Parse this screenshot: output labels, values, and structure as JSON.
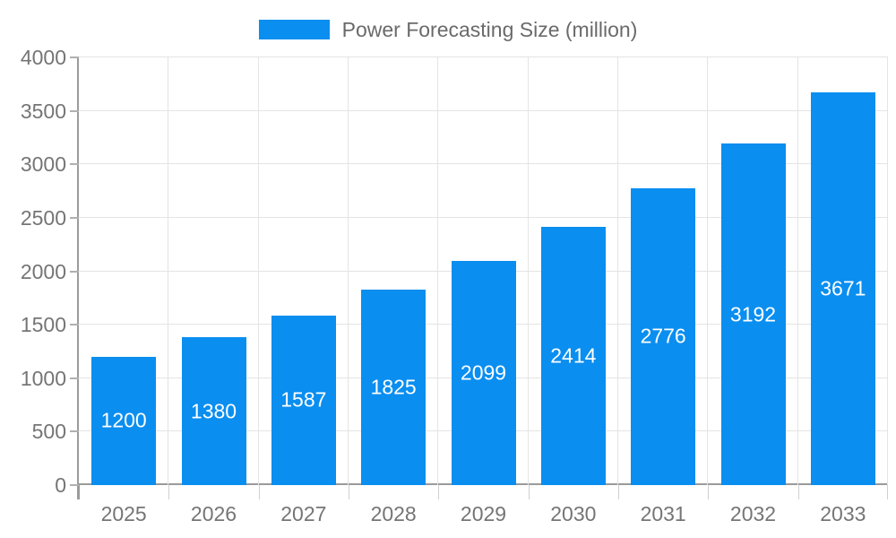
{
  "legend": {
    "label": "Power Forecasting Size (million)"
  },
  "colors": {
    "bar": "#0a8ef0",
    "grid": "#e4e4e4",
    "axis": "#9b9b9b",
    "y_tick": "#b0b0b0",
    "x_tick": "#d0d0d0",
    "axis_text": "#757575",
    "legend_text": "#6a6a6a",
    "value_text": "#ffffff"
  },
  "chart_data": {
    "type": "bar",
    "title": "Power Forecasting Size (million)",
    "series": [
      {
        "name": "Power Forecasting Size (million)",
        "values": [
          1200,
          1380,
          1587,
          1825,
          2099,
          2414,
          2776,
          3192,
          3671
        ]
      }
    ],
    "categories": [
      "2025",
      "2026",
      "2027",
      "2028",
      "2029",
      "2030",
      "2031",
      "2032",
      "2033"
    ],
    "xlabel": "",
    "ylabel": "",
    "ylim": [
      0,
      4000
    ],
    "y_ticks": [
      0,
      500,
      1000,
      1500,
      2000,
      2500,
      3000,
      3500,
      4000
    ],
    "grid": "horizontal and vertical light gray gridlines",
    "legend_position": "top-center",
    "data_labels": "values shown in white, centered inside each bar"
  }
}
